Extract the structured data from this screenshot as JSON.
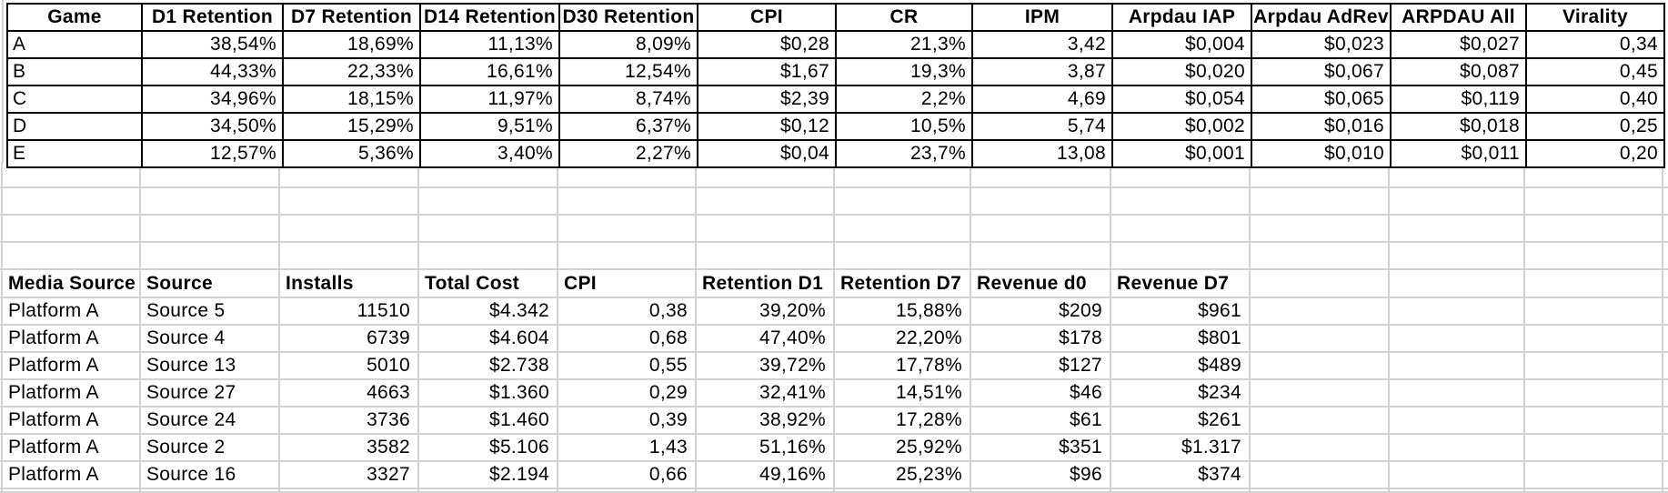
{
  "colors": {
    "background": "#ffffff",
    "grid_line": "#d2d2d2",
    "table_border": "#000000",
    "text": "#000000"
  },
  "game_table": {
    "columns": [
      "Game",
      "D1 Retention",
      "D7 Retention",
      "D14 Retention",
      "D30 Retention",
      "CPI",
      "CR",
      "IPM",
      "Arpdau IAP",
      "Arpdau AdRev",
      "ARPDAU All",
      "Virality"
    ],
    "rows": [
      [
        "A",
        "38,54%",
        "18,69%",
        "11,13%",
        "8,09%",
        "$0,28",
        "21,3%",
        "3,42",
        "$0,004",
        "$0,023",
        "$0,027",
        "0,34"
      ],
      [
        "B",
        "44,33%",
        "22,33%",
        "16,61%",
        "12,54%",
        "$1,67",
        "19,3%",
        "3,87",
        "$0,020",
        "$0,067",
        "$0,087",
        "0,45"
      ],
      [
        "C",
        "34,96%",
        "18,15%",
        "11,97%",
        "8,74%",
        "$2,39",
        "2,2%",
        "4,69",
        "$0,054",
        "$0,065",
        "$0,119",
        "0,40"
      ],
      [
        "D",
        "34,50%",
        "15,29%",
        "9,51%",
        "6,37%",
        "$0,12",
        "10,5%",
        "5,74",
        "$0,002",
        "$0,016",
        "$0,018",
        "0,25"
      ],
      [
        "E",
        "12,57%",
        "5,36%",
        "3,40%",
        "2,27%",
        "$0,04",
        "23,7%",
        "13,08",
        "$0,001",
        "$0,010",
        "$0,011",
        "0,20"
      ]
    ]
  },
  "ua_table": {
    "columns": [
      "Media Source",
      "Source",
      "Installs",
      "Total Cost",
      "CPI",
      "Retention D1",
      "Retention D7",
      "Revenue d0",
      "Revenue D7"
    ],
    "rows": [
      [
        "Platform A",
        "Source 5",
        "11510",
        "$4.342",
        "0,38",
        "39,20%",
        "15,88%",
        "$209",
        "$961"
      ],
      [
        "Platform A",
        "Source 4",
        "6739",
        "$4.604",
        "0,68",
        "47,40%",
        "22,20%",
        "$178",
        "$801"
      ],
      [
        "Platform A",
        "Source 13",
        "5010",
        "$2.738",
        "0,55",
        "39,72%",
        "17,78%",
        "$127",
        "$489"
      ],
      [
        "Platform A",
        "Source 27",
        "4663",
        "$1.360",
        "0,29",
        "32,41%",
        "14,51%",
        "$46",
        "$234"
      ],
      [
        "Platform A",
        "Source 24",
        "3736",
        "$1.460",
        "0,39",
        "38,92%",
        "17,28%",
        "$61",
        "$261"
      ],
      [
        "Platform A",
        "Source 2",
        "3582",
        "$5.106",
        "1,43",
        "51,16%",
        "25,92%",
        "$351",
        "$1.317"
      ],
      [
        "Platform A",
        "Source 16",
        "3327",
        "$2.194",
        "0,66",
        "49,16%",
        "25,23%",
        "$96",
        "$374"
      ]
    ]
  }
}
